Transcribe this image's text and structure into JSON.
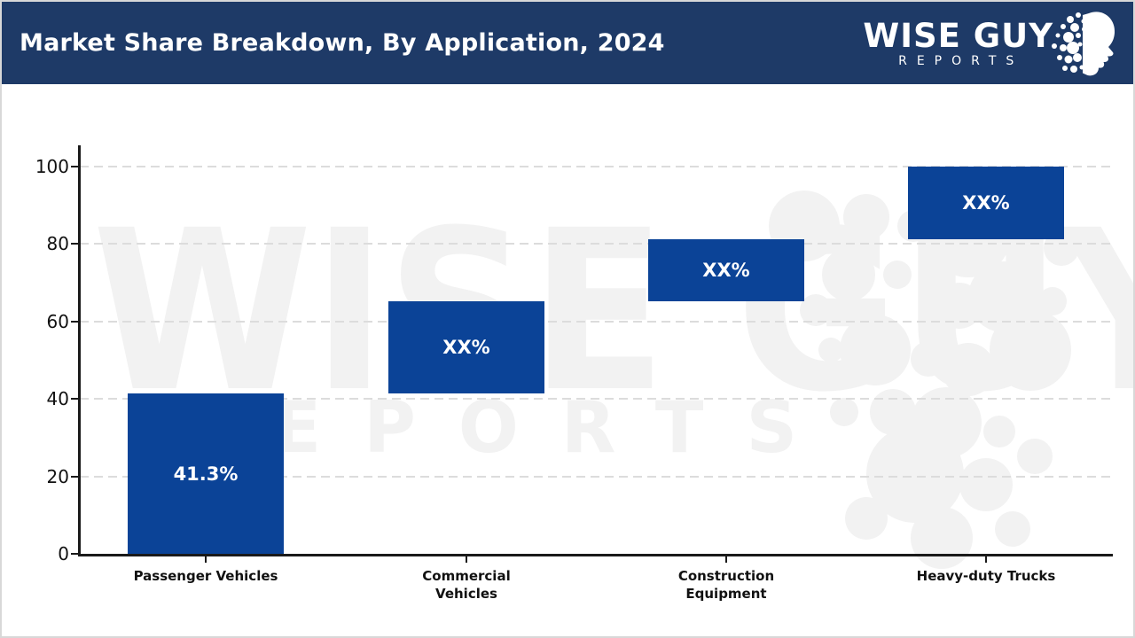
{
  "header": {
    "title": "Market Share Breakdown, By Application, 2024",
    "logo": {
      "line1": "WISE GUY",
      "line2": "REPORTS"
    },
    "bg_color": "#1e3a67"
  },
  "watermark": {
    "line1": "WISE GUY",
    "line2": "REPORTS"
  },
  "chart_data": {
    "type": "bar",
    "variant": "waterfall",
    "title": "Market Share Breakdown, By Application, 2024",
    "categories": [
      "Passenger Vehicles",
      "Commercial\nVehicles",
      "Construction\nEquipment",
      "Heavy-duty Trucks"
    ],
    "segments": [
      {
        "category": "Passenger Vehicles",
        "start": 0,
        "end": 41.3,
        "label": "41.3%"
      },
      {
        "category": "Commercial Vehicles",
        "start": 41.3,
        "end": 65.1,
        "label": "XX%"
      },
      {
        "category": "Construction Equipment",
        "start": 65.1,
        "end": 81.2,
        "label": "XX%"
      },
      {
        "category": "Heavy-duty Trucks",
        "start": 81.2,
        "end": 100,
        "label": "XX%"
      }
    ],
    "yticks": [
      0,
      20,
      40,
      60,
      80,
      100
    ],
    "ylim": [
      0,
      100
    ],
    "xlabel": "",
    "ylabel": "",
    "grid": "horizontal-dashed",
    "legend": "none",
    "bar_color": "#0b4397",
    "bar_label_color": "#ffffff",
    "axis_color": "#1a1a1a",
    "gridline_color": "#dcdcdc"
  }
}
